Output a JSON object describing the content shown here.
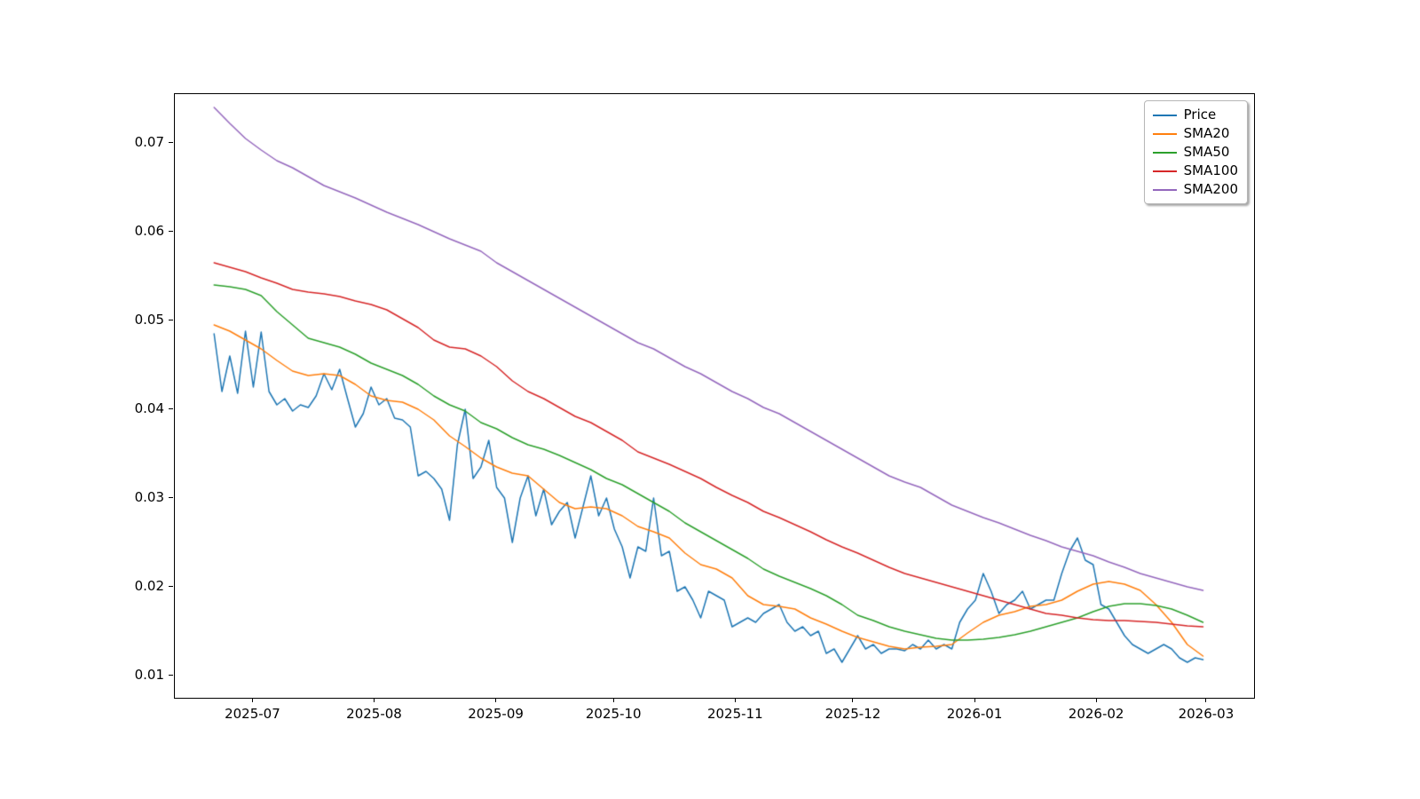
{
  "figure": {
    "background": "#ffffff"
  },
  "chart_data": {
    "type": "line",
    "title": "",
    "xlabel": "",
    "ylabel": "",
    "grid": false,
    "x_unit": "days since 2025-06-21",
    "xlim": [
      -10,
      265
    ],
    "ylim": [
      0.0075,
      0.0755
    ],
    "x_ticks": [
      {
        "pos": 10,
        "label": "2025-07"
      },
      {
        "pos": 41,
        "label": "2025-08"
      },
      {
        "pos": 72,
        "label": "2025-09"
      },
      {
        "pos": 102,
        "label": "2025-10"
      },
      {
        "pos": 133,
        "label": "2025-11"
      },
      {
        "pos": 163,
        "label": "2025-12"
      },
      {
        "pos": 194,
        "label": "2026-01"
      },
      {
        "pos": 225,
        "label": "2026-02"
      },
      {
        "pos": 253,
        "label": "2026-03"
      }
    ],
    "y_ticks": [
      {
        "pos": 0.01,
        "label": "0.01"
      },
      {
        "pos": 0.02,
        "label": "0.02"
      },
      {
        "pos": 0.03,
        "label": "0.03"
      },
      {
        "pos": 0.04,
        "label": "0.04"
      },
      {
        "pos": 0.05,
        "label": "0.05"
      },
      {
        "pos": 0.06,
        "label": "0.06"
      },
      {
        "pos": 0.07,
        "label": "0.07"
      }
    ],
    "legend": {
      "position": "upper right"
    },
    "series": [
      {
        "name": "Price",
        "color": "#1f77b4",
        "x_start": 0,
        "x_step": 2,
        "values": [
          0.0485,
          0.042,
          0.046,
          0.0418,
          0.0488,
          0.0425,
          0.0487,
          0.042,
          0.0405,
          0.0412,
          0.0398,
          0.0405,
          0.0402,
          0.0415,
          0.044,
          0.0422,
          0.0445,
          0.0412,
          0.038,
          0.0395,
          0.0425,
          0.0405,
          0.0412,
          0.039,
          0.0388,
          0.038,
          0.0325,
          0.033,
          0.0322,
          0.031,
          0.0275,
          0.036,
          0.04,
          0.0322,
          0.0335,
          0.0365,
          0.0312,
          0.03,
          0.025,
          0.03,
          0.0325,
          0.028,
          0.031,
          0.027,
          0.0285,
          0.0295,
          0.0255,
          0.029,
          0.0325,
          0.028,
          0.03,
          0.0265,
          0.0245,
          0.021,
          0.0245,
          0.024,
          0.03,
          0.0235,
          0.024,
          0.0195,
          0.02,
          0.0185,
          0.0165,
          0.0195,
          0.019,
          0.0185,
          0.0155,
          0.016,
          0.0165,
          0.016,
          0.017,
          0.0175,
          0.018,
          0.016,
          0.015,
          0.0155,
          0.0145,
          0.015,
          0.0125,
          0.013,
          0.0115,
          0.013,
          0.0145,
          0.013,
          0.0135,
          0.0125,
          0.013,
          0.013,
          0.0128,
          0.0135,
          0.013,
          0.014,
          0.013,
          0.0135,
          0.013,
          0.016,
          0.0175,
          0.0185,
          0.0215,
          0.0195,
          0.017,
          0.018,
          0.0185,
          0.0195,
          0.0175,
          0.018,
          0.0185,
          0.0185,
          0.0215,
          0.024,
          0.0255,
          0.023,
          0.0225,
          0.018,
          0.0175,
          0.016,
          0.0145,
          0.0135,
          0.013,
          0.0125,
          0.013,
          0.0135,
          0.013,
          0.012,
          0.0115,
          0.012,
          0.0118
        ]
      },
      {
        "name": "SMA20",
        "color": "#ff7f0e",
        "x_start": 0,
        "x_step": 4,
        "values": [
          0.0495,
          0.0488,
          0.0478,
          0.0468,
          0.0455,
          0.0443,
          0.0438,
          0.044,
          0.0438,
          0.0428,
          0.0415,
          0.041,
          0.0408,
          0.04,
          0.0388,
          0.037,
          0.0358,
          0.0345,
          0.0335,
          0.0328,
          0.0325,
          0.031,
          0.0295,
          0.0288,
          0.029,
          0.0288,
          0.028,
          0.0268,
          0.0262,
          0.0255,
          0.0238,
          0.0225,
          0.022,
          0.021,
          0.019,
          0.018,
          0.0178,
          0.0175,
          0.0165,
          0.0158,
          0.015,
          0.0143,
          0.0138,
          0.0133,
          0.013,
          0.0132,
          0.0133,
          0.0135,
          0.0148,
          0.016,
          0.0168,
          0.0172,
          0.0178,
          0.018,
          0.0185,
          0.0195,
          0.0203,
          0.0206,
          0.0203,
          0.0196,
          0.018,
          0.016,
          0.0135,
          0.0122
        ]
      },
      {
        "name": "SMA50",
        "color": "#2ca02c",
        "x_start": 0,
        "x_step": 4,
        "values": [
          0.054,
          0.0538,
          0.0535,
          0.0528,
          0.051,
          0.0495,
          0.048,
          0.0475,
          0.047,
          0.0462,
          0.0452,
          0.0445,
          0.0438,
          0.0428,
          0.0415,
          0.0405,
          0.0398,
          0.0385,
          0.0378,
          0.0368,
          0.036,
          0.0355,
          0.0348,
          0.034,
          0.0332,
          0.0322,
          0.0315,
          0.0305,
          0.0295,
          0.0285,
          0.0272,
          0.0262,
          0.0252,
          0.0242,
          0.0232,
          0.022,
          0.0212,
          0.0205,
          0.0198,
          0.019,
          0.018,
          0.0168,
          0.0162,
          0.0155,
          0.015,
          0.0146,
          0.0142,
          0.014,
          0.014,
          0.0141,
          0.0143,
          0.0146,
          0.015,
          0.0155,
          0.016,
          0.0165,
          0.0172,
          0.0178,
          0.0181,
          0.0181,
          0.0179,
          0.0175,
          0.0168,
          0.016
        ]
      },
      {
        "name": "SMA100",
        "color": "#d62728",
        "x_start": 0,
        "x_step": 4,
        "values": [
          0.0565,
          0.056,
          0.0555,
          0.0548,
          0.0542,
          0.0535,
          0.0532,
          0.053,
          0.0527,
          0.0522,
          0.0518,
          0.0512,
          0.0502,
          0.0492,
          0.0478,
          0.047,
          0.0468,
          0.046,
          0.0448,
          0.0432,
          0.042,
          0.0412,
          0.0402,
          0.0392,
          0.0385,
          0.0375,
          0.0365,
          0.0352,
          0.0345,
          0.0338,
          0.033,
          0.0322,
          0.0312,
          0.0303,
          0.0295,
          0.0285,
          0.0278,
          0.027,
          0.0262,
          0.0253,
          0.0245,
          0.0238,
          0.023,
          0.0222,
          0.0215,
          0.021,
          0.0205,
          0.02,
          0.0195,
          0.019,
          0.0185,
          0.018,
          0.0175,
          0.017,
          0.0168,
          0.0165,
          0.0163,
          0.0162,
          0.0162,
          0.0161,
          0.016,
          0.0158,
          0.0156,
          0.0155
        ]
      },
      {
        "name": "SMA200",
        "color": "#9467bd",
        "x_start": 0,
        "x_step": 4,
        "values": [
          0.074,
          0.0722,
          0.0705,
          0.0692,
          0.068,
          0.0672,
          0.0662,
          0.0652,
          0.0645,
          0.0638,
          0.063,
          0.0622,
          0.0615,
          0.0608,
          0.06,
          0.0592,
          0.0585,
          0.0578,
          0.0565,
          0.0555,
          0.0545,
          0.0535,
          0.0525,
          0.0515,
          0.0505,
          0.0495,
          0.0485,
          0.0475,
          0.0468,
          0.0458,
          0.0448,
          0.044,
          0.043,
          0.042,
          0.0412,
          0.0402,
          0.0395,
          0.0385,
          0.0375,
          0.0365,
          0.0355,
          0.0345,
          0.0335,
          0.0325,
          0.0318,
          0.0312,
          0.0302,
          0.0292,
          0.0285,
          0.0278,
          0.0272,
          0.0265,
          0.0258,
          0.0252,
          0.0245,
          0.024,
          0.0235,
          0.0228,
          0.0222,
          0.0215,
          0.021,
          0.0205,
          0.02,
          0.0196
        ]
      }
    ]
  }
}
